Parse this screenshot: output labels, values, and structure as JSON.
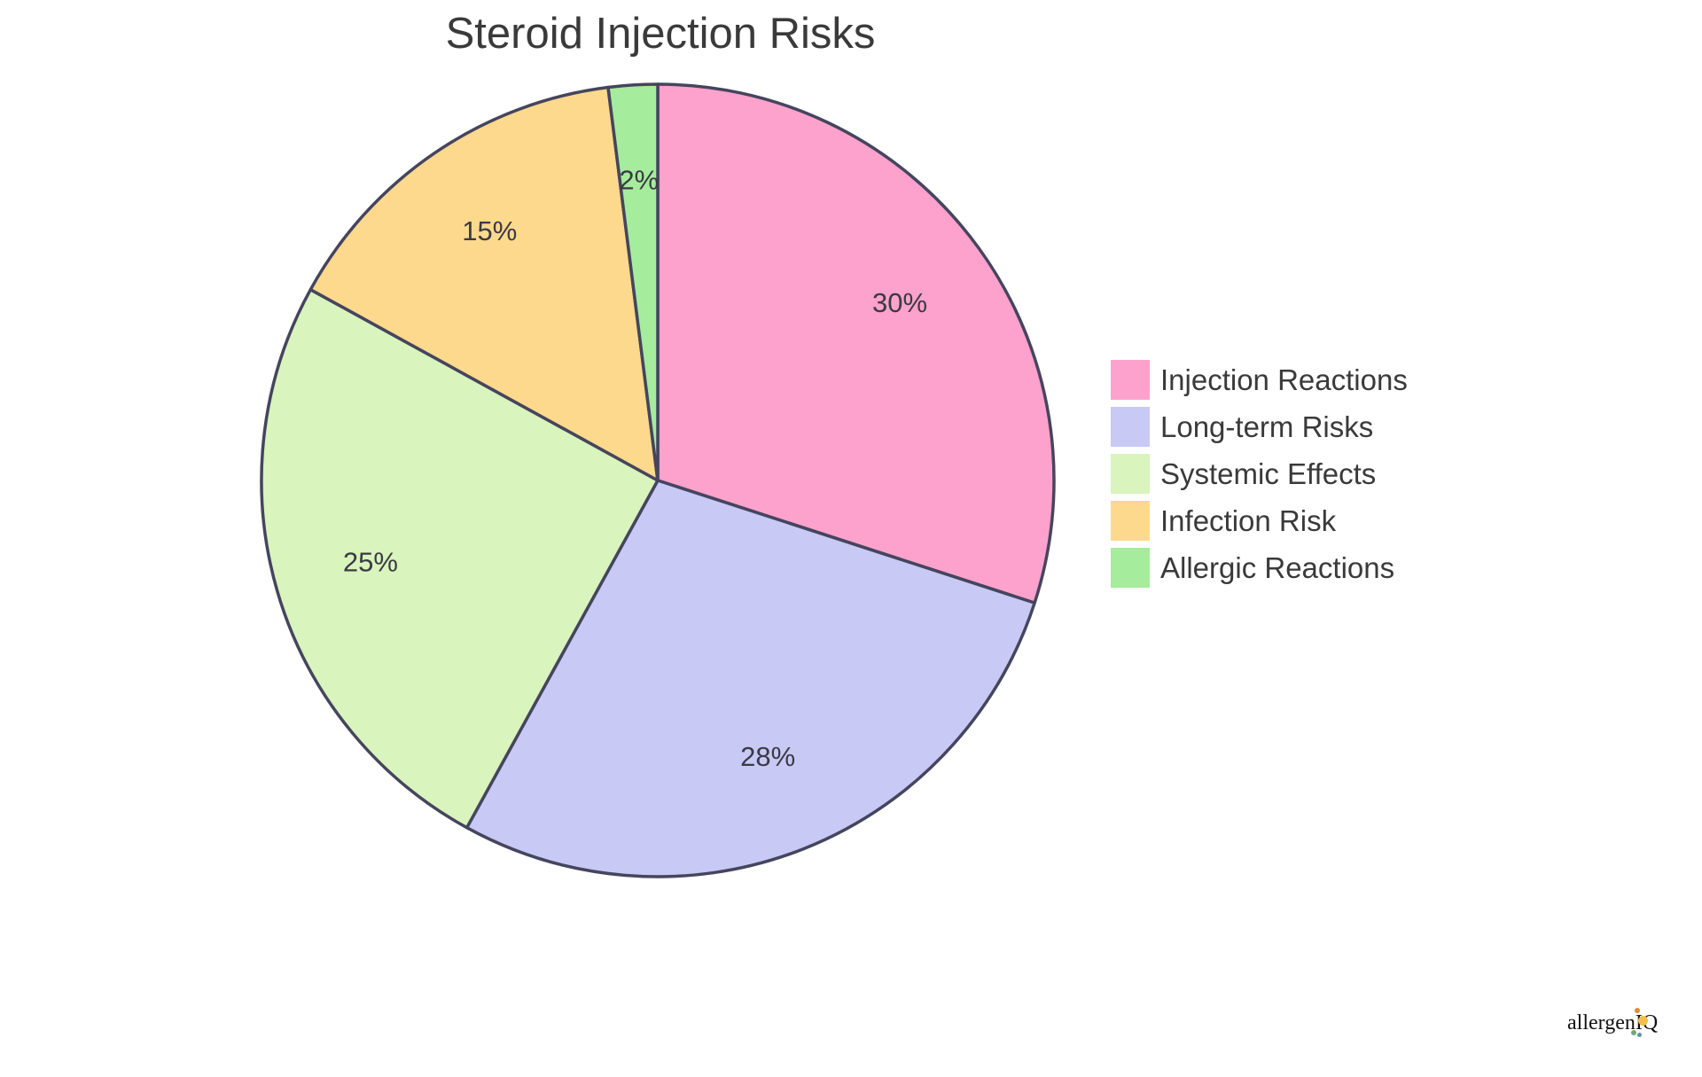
{
  "chart_data": {
    "type": "pie",
    "title": "Steroid Injection Risks",
    "labels": [
      "Injection Reactions",
      "Long-term Risks",
      "Systemic Effects",
      "Infection Risk",
      "Allergic Reactions"
    ],
    "values": [
      30,
      28,
      25,
      15,
      2
    ],
    "percent_labels": [
      "30%",
      "28%",
      "25%",
      "15%",
      "2%"
    ],
    "colors": [
      "#FDA2CC",
      "#C9C9F6",
      "#D9F4BC",
      "#FCD98C",
      "#A5EC9D"
    ],
    "edge_color": "#45455E",
    "percent_label_color": "#3A3A44",
    "title_color": "#3A3A3A",
    "start_angle": "top",
    "direction": "clockwise",
    "legend_position": "right",
    "grid": false
  },
  "watermark": {
    "text": "allergenIQ",
    "dot_colors": {
      "orange": "#DD8F33",
      "gold": "#F2C04A",
      "green": "#6FA874",
      "teal": "#5F93A8"
    }
  }
}
